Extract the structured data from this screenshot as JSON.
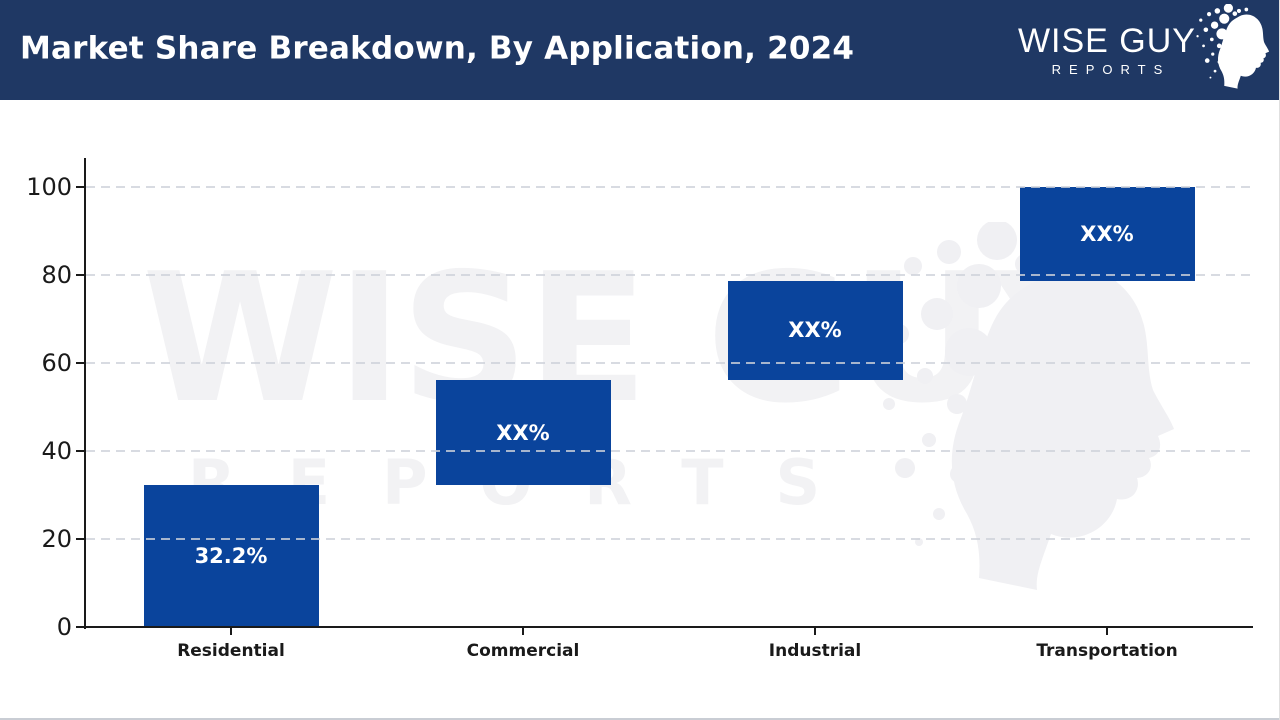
{
  "header": {
    "title": "Market Share Breakdown, By Application, 2024",
    "bg_color": "#1f3864",
    "logo": {
      "line1": "WISE GUY",
      "line2": "REPORTS"
    }
  },
  "watermark": {
    "line1": "WISE GUY",
    "line2": "REPORTS"
  },
  "chart_data": {
    "type": "bar",
    "subtype": "waterfall-floating-bars",
    "title": "Market Share Breakdown, By Application, 2024",
    "categories": [
      "Residential",
      "Commercial",
      "Industrial",
      "Transportation"
    ],
    "segments": [
      {
        "category": "Residential",
        "start": 0,
        "end": 32.2,
        "label": "32.2%"
      },
      {
        "category": "Commercial",
        "start": 32.2,
        "end": 56.1,
        "label": "XX%"
      },
      {
        "category": "Industrial",
        "start": 56.1,
        "end": 78.7,
        "label": "XX%"
      },
      {
        "category": "Transportation",
        "start": 78.7,
        "end": 100,
        "label": "XX%"
      }
    ],
    "ylim": [
      0,
      100
    ],
    "yticks": [
      0,
      20,
      40,
      60,
      80,
      100
    ],
    "xlabel": "",
    "ylabel": "",
    "grid": "horizontal-dashed",
    "legend": "none",
    "bar_color": "#0a449c",
    "bar_label_color": "#ffffff",
    "axis_color": "#1a1a1a"
  }
}
